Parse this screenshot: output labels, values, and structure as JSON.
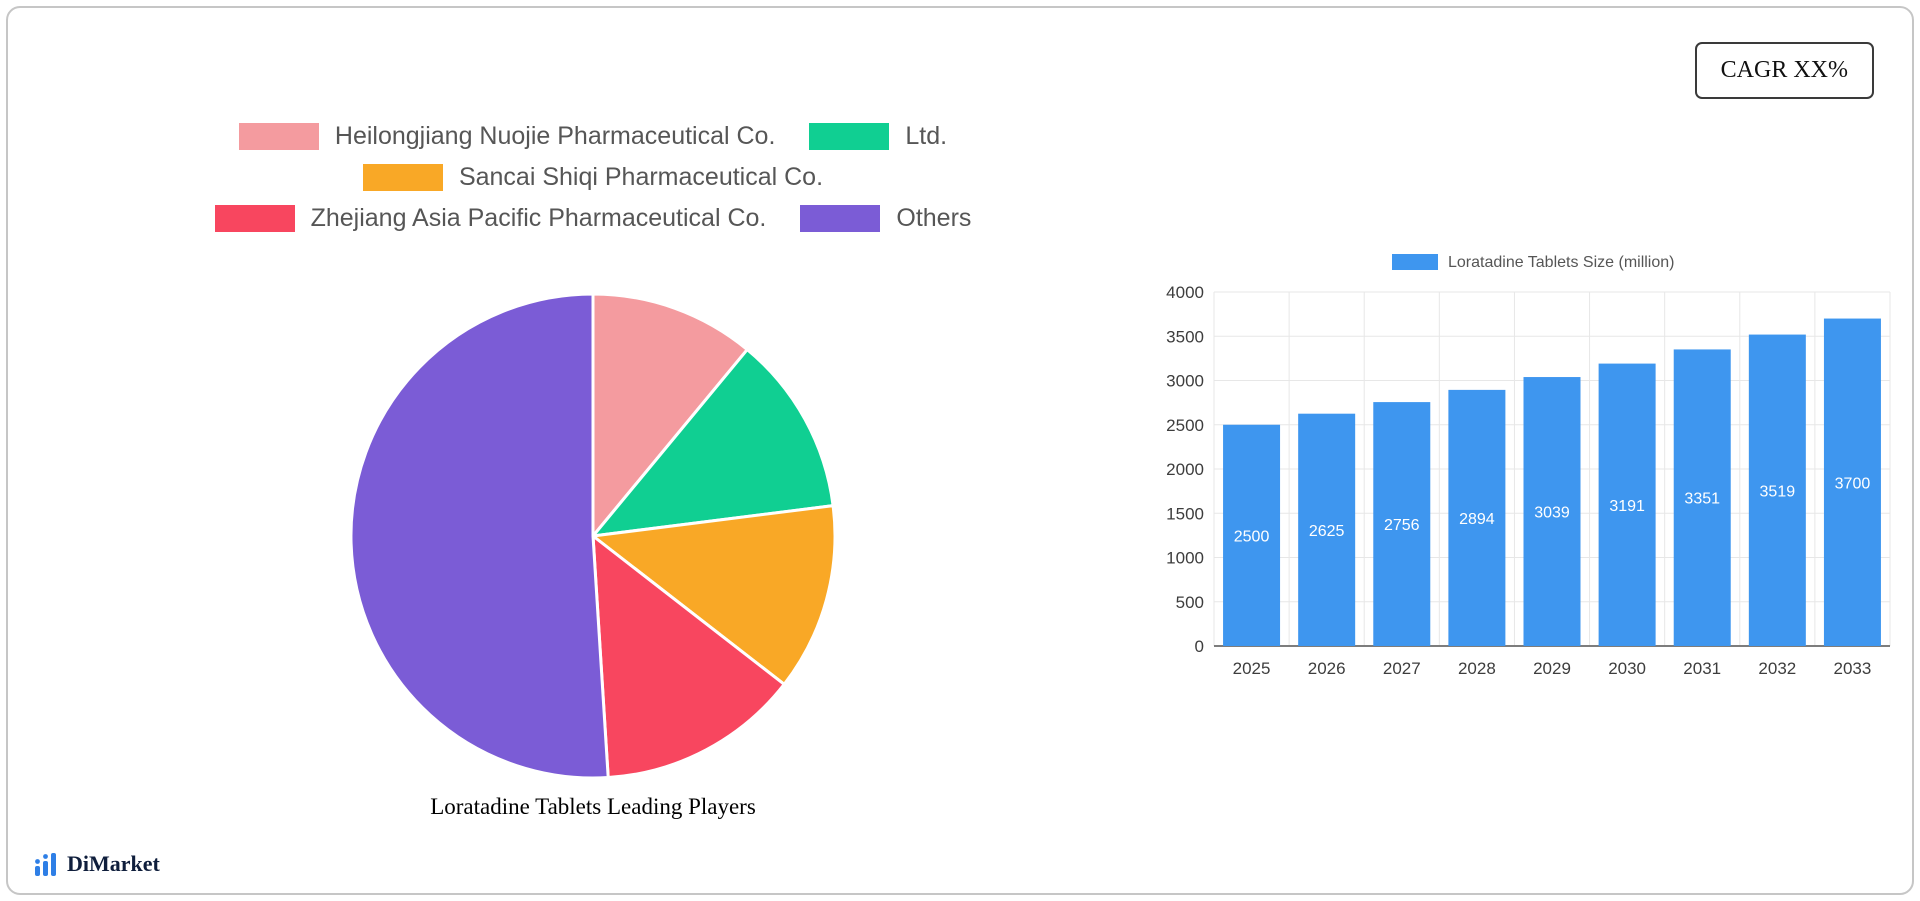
{
  "page": {
    "cagr_label": "CAGR XX%",
    "brand": "DiMarket"
  },
  "chart_data": [
    {
      "type": "pie",
      "title": "Loratadine Tablets Leading Players",
      "labels": [
        "Heilongjiang Nuojie Pharmaceutical Co.",
        "Ltd.",
        "Sancai Shiqi Pharmaceutical Co.",
        "Zhejiang Asia Pacific Pharmaceutical Co.",
        "Others"
      ],
      "values": [
        11,
        12,
        12.5,
        13.5,
        51
      ],
      "colors": [
        "#f49b9f",
        "#10cf92",
        "#f9a826",
        "#f8465f",
        "#7b5cd6"
      ],
      "legend_rows": [
        [
          0,
          1
        ],
        [
          2
        ],
        [
          3,
          4
        ]
      ],
      "start_angle": "top",
      "direction": "clockwise",
      "slice_gap_color": "#ffffff",
      "legend_position": "top"
    },
    {
      "type": "bar",
      "legend": "Loratadine Tablets Size (million)",
      "categories": [
        "2025",
        "2026",
        "2027",
        "2028",
        "2029",
        "2030",
        "2031",
        "2032",
        "2033"
      ],
      "values": [
        2500,
        2625,
        2756,
        2894,
        3039,
        3191,
        3351,
        3519,
        3700
      ],
      "ylim": [
        0,
        4000
      ],
      "yticks": [
        0,
        500,
        1000,
        1500,
        2000,
        2500,
        3000,
        3500,
        4000
      ],
      "bar_color": "#3e96ef",
      "value_label_color": "#ffffff",
      "axis_text_color": "#3d3d3d",
      "grid": true,
      "legend_position": "top"
    }
  ]
}
